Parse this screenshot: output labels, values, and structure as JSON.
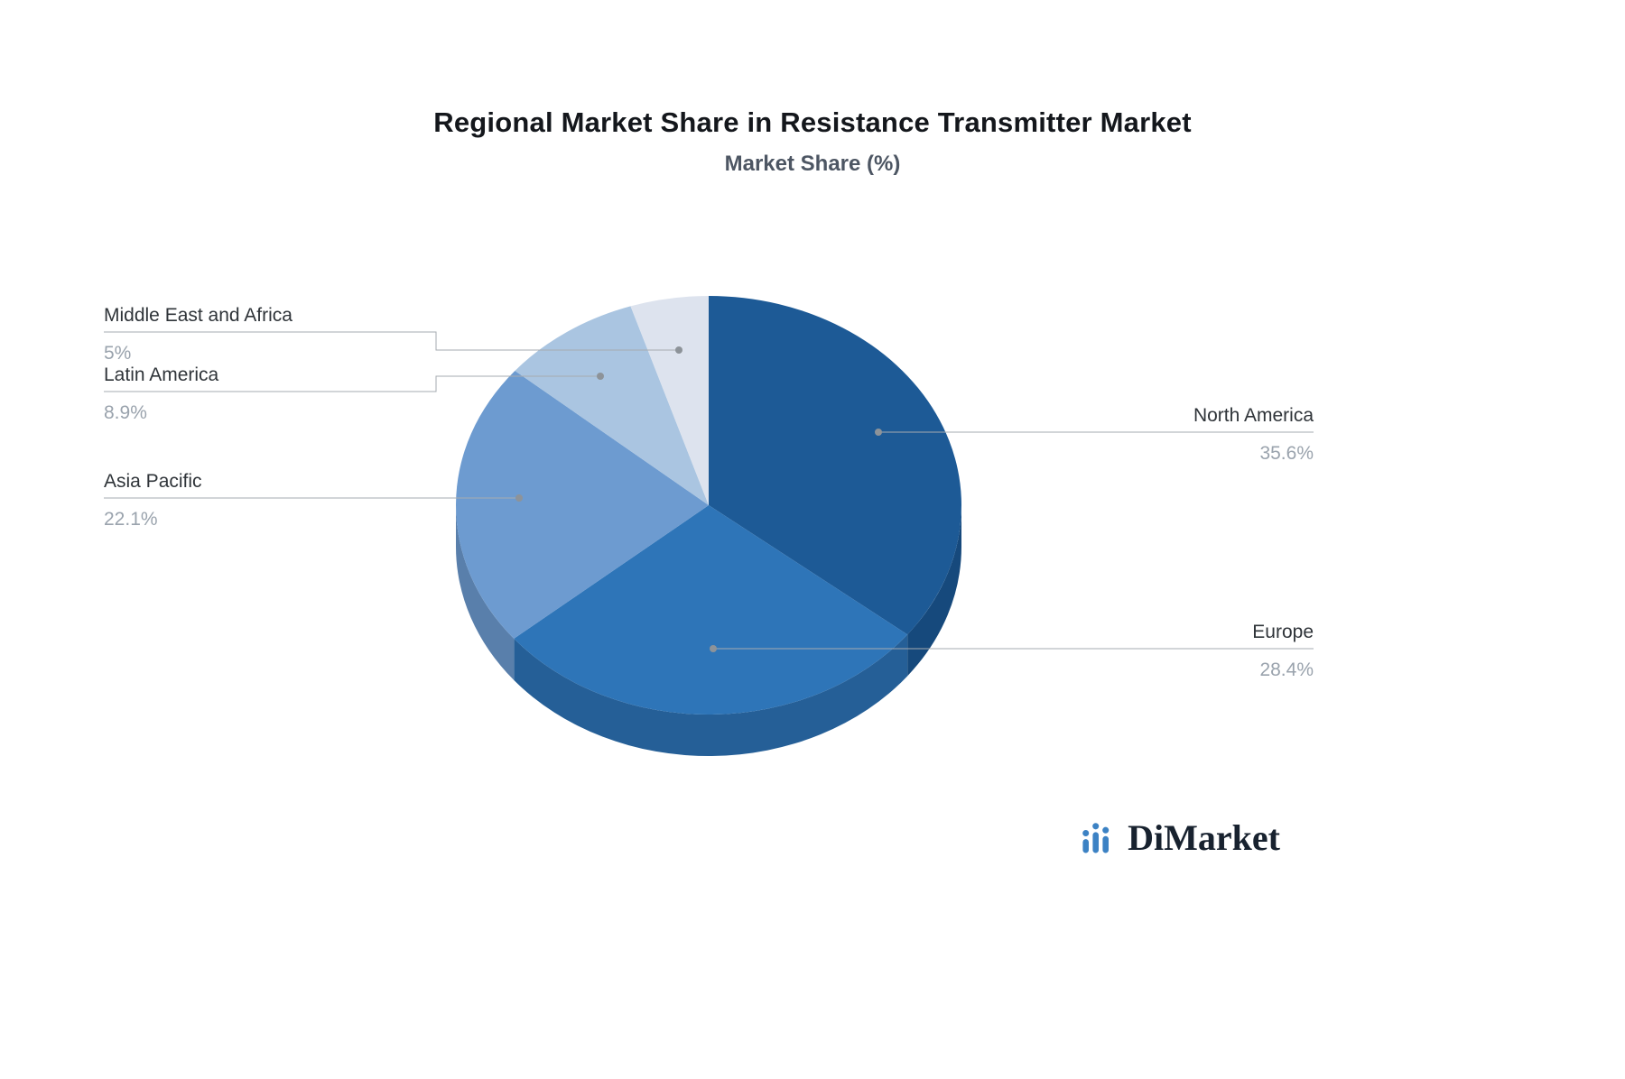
{
  "chart_data": {
    "type": "pie",
    "title": "Regional Market Share in Resistance Transmitter Market",
    "subtitle": "Market Share (%)",
    "unit": "%",
    "labels": [
      "North America",
      "Europe",
      "Asia Pacific",
      "Latin America",
      "Middle East and Africa"
    ],
    "values": [
      35.6,
      28.4,
      22.1,
      8.9,
      5
    ],
    "value_labels": [
      "35.6%",
      "28.4%",
      "22.1%",
      "8.9%",
      "5%"
    ],
    "colors": [
      "#1d5a96",
      "#2e75b8",
      "#6d9bd0",
      "#aac5e1",
      "#dde3ee"
    ],
    "side_colors": [
      "#16497c",
      "#255f97",
      "#597fab",
      "#8ba4bd",
      "#b9c1cd"
    ],
    "start_angle_deg": 0,
    "direction": "clockwise",
    "style_3d": true,
    "legend_position": "callout-labels",
    "label_line_color": "#a6abb0",
    "label_dot_color": "#8d9399"
  },
  "logo": {
    "text": "DiMarket",
    "icon": "bar-chart-icon",
    "text_color": "#18222f",
    "icon_color": "#3c82c4"
  }
}
